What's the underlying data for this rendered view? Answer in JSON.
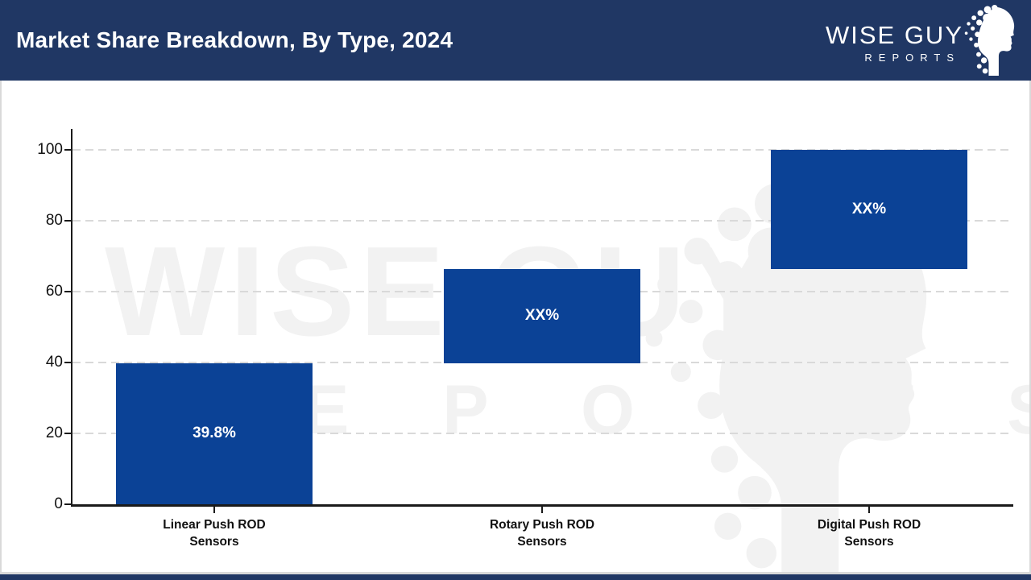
{
  "header": {
    "title": "Market Share Breakdown, By Type, 2024",
    "logo": {
      "primary": "WISE GUY",
      "secondary": "REPORTS"
    }
  },
  "watermark": {
    "primary": "WISE GUY",
    "secondary": "R E P O R T S"
  },
  "chart_data": {
    "type": "bar",
    "subtype": "floating_segment_bars",
    "title": "Market Share Breakdown, By Type, 2024",
    "categories": [
      "Linear Push ROD\nSensors",
      "Rotary Push ROD\nSensors",
      "Digital Push ROD\nSensors"
    ],
    "segments": [
      {
        "category": "Linear Push ROD Sensors",
        "start": 0,
        "end": 39.8,
        "label": "39.8%"
      },
      {
        "category": "Rotary Push ROD Sensors",
        "start": 39.8,
        "end": 66.4,
        "label": "XX%"
      },
      {
        "category": "Digital Push ROD Sensors",
        "start": 66.4,
        "end": 100,
        "label": "XX%"
      }
    ],
    "xlabel": "",
    "ylabel": "",
    "ylim": [
      0,
      100
    ],
    "yticks": [
      0,
      20,
      40,
      60,
      80,
      100
    ],
    "grid": {
      "horizontal": true,
      "style": "dashed"
    },
    "legend": "none",
    "bar_color": "#0b4296",
    "bar_label_color": "#ffffff"
  },
  "colors": {
    "header_bg": "#203764",
    "footer_bg": "#203764",
    "grid": "#d9d9d9",
    "axis": "#1a1a1a",
    "watermark": "#f2f2f2",
    "bar": "#0b4296"
  }
}
